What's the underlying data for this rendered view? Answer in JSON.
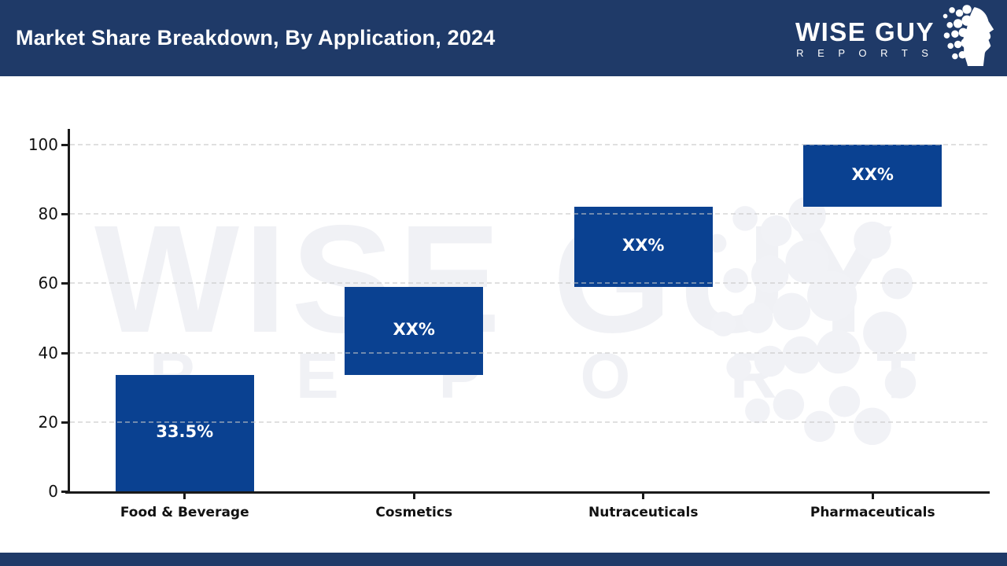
{
  "header": {
    "title": "Market Share Breakdown, By Application, 2024",
    "logo": {
      "name": "WISE GUY",
      "tagline": "R E P O R T S"
    }
  },
  "watermark": {
    "line1": "WISE GUY",
    "line2": "R E P O R T S"
  },
  "colors": {
    "header_bar": "#1f3a68",
    "footer_bar": "#1f3a68",
    "bar_fill": "#0a4191",
    "bar_label_text": "#ffffff",
    "axis": "#1a1a1a",
    "gridline": "#d9d9d9",
    "tick_text": "#111111",
    "watermark": "#f0f1f5",
    "background": "#ffffff"
  },
  "chart_data": {
    "type": "bar",
    "subtype": "waterfall",
    "title": "Market Share Breakdown, By Application, 2024",
    "categories": [
      "Food & Beverage",
      "Cosmetics",
      "Nutraceuticals",
      "Pharmaceuticals"
    ],
    "segments": [
      {
        "category": "Food & Beverage",
        "start": 0,
        "end": 33.5,
        "label": "33.5%"
      },
      {
        "category": "Cosmetics",
        "start": 33.5,
        "end": 59,
        "label": "XX%"
      },
      {
        "category": "Nutraceuticals",
        "start": 59,
        "end": 82,
        "label": "XX%"
      },
      {
        "category": "Pharmaceuticals",
        "start": 82,
        "end": 100,
        "label": "XX%"
      }
    ],
    "yticks": [
      0,
      20,
      40,
      60,
      80,
      100
    ],
    "ylim": [
      0,
      104.5
    ],
    "xlabel": "",
    "ylabel": "",
    "grid": "horizontal-dashed",
    "gridlines_above_bars": true,
    "legend": null
  }
}
